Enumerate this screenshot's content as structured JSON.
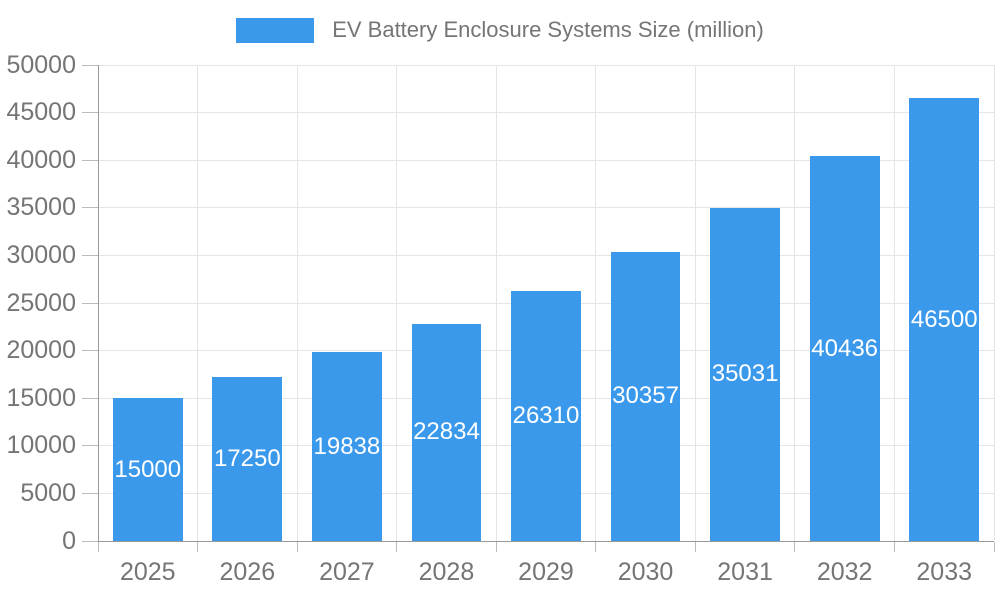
{
  "legend": {
    "label": "EV Battery Enclosure Systems Size (million)"
  },
  "colors": {
    "bar": "#3B99EC",
    "grid": "#E5E5E5",
    "axis": "#999999",
    "tick": "#BBBBBB",
    "axis_text": "#757575",
    "value_text": "#FFFFFF",
    "background": "#FFFFFF"
  },
  "chart_data": {
    "type": "bar",
    "title": "EV Battery Enclosure Systems Size (million)",
    "categories": [
      "2025",
      "2026",
      "2027",
      "2028",
      "2029",
      "2030",
      "2031",
      "2032",
      "2033"
    ],
    "values": [
      15000,
      17250,
      19838,
      22834,
      26310,
      30357,
      35031,
      40436,
      46500
    ],
    "series": [
      {
        "name": "EV Battery Enclosure Systems Size (million)",
        "values": [
          15000,
          17250,
          19838,
          22834,
          26310,
          30357,
          35031,
          40436,
          46500
        ]
      }
    ],
    "xlabel": "",
    "ylabel": "",
    "ylim": [
      0,
      50000
    ],
    "yticks": [
      0,
      5000,
      10000,
      15000,
      20000,
      25000,
      30000,
      35000,
      40000,
      45000,
      50000
    ],
    "grid": {
      "horizontal": true,
      "vertical": true
    },
    "legend_position": "top-center",
    "value_labels": "inside-center"
  }
}
